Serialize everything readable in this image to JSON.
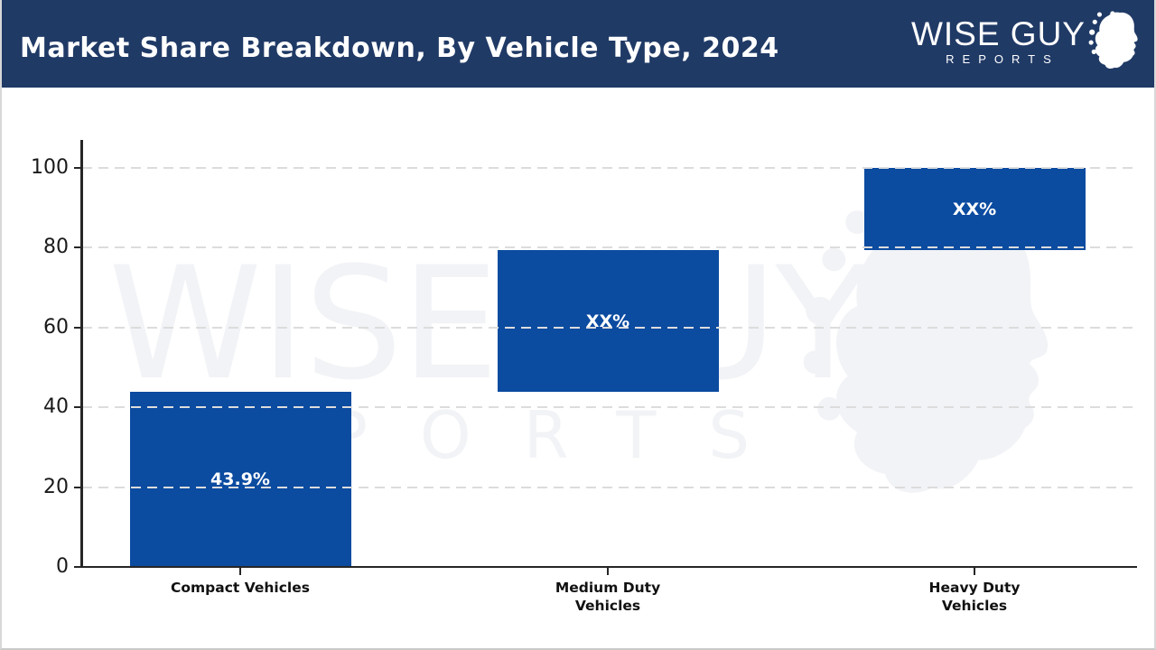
{
  "header": {
    "title": "Market Share Breakdown, By Vehicle Type, 2024",
    "logo": {
      "line1": "WISE GUY",
      "line2": "REPORTS"
    }
  },
  "watermark": {
    "line1": "WISE GUY",
    "line2": "REPORTS"
  },
  "colors": {
    "header_bg": "#203a66",
    "bar": "#0b4ba0",
    "grid": "#dcdcdc",
    "axis": "#262626",
    "bar_label": "#ffffff",
    "title_text": "#ffffff",
    "watermark": "#f2f3f6"
  },
  "chart_data": {
    "type": "bar",
    "subtype": "waterfall",
    "title": "Market Share Breakdown, By Vehicle Type, 2024",
    "categories": [
      "Compact Vehicles",
      "Medium Duty Vehicles",
      "Heavy Duty Vehicles"
    ],
    "category_lines": [
      [
        "Compact Vehicles"
      ],
      [
        "Medium Duty",
        "Vehicles"
      ],
      [
        "Heavy Duty",
        "Vehicles"
      ]
    ],
    "segments": [
      {
        "category": "Compact Vehicles",
        "start": 0,
        "end": 43.9,
        "label": "43.9%"
      },
      {
        "category": "Medium Duty Vehicles",
        "start": 43.9,
        "end": 79.3,
        "label": "XX%"
      },
      {
        "category": "Heavy Duty Vehicles",
        "start": 79.3,
        "end": 100,
        "label": "XX%"
      }
    ],
    "yticks": [
      0,
      20,
      40,
      60,
      80,
      100
    ],
    "ytick_labels": [
      "0",
      "20",
      "40",
      "60",
      "80",
      "100"
    ],
    "ylim": [
      0,
      100
    ],
    "grid": "dashed-horizontal",
    "legend": "none",
    "xlabel": "",
    "ylabel": ""
  }
}
